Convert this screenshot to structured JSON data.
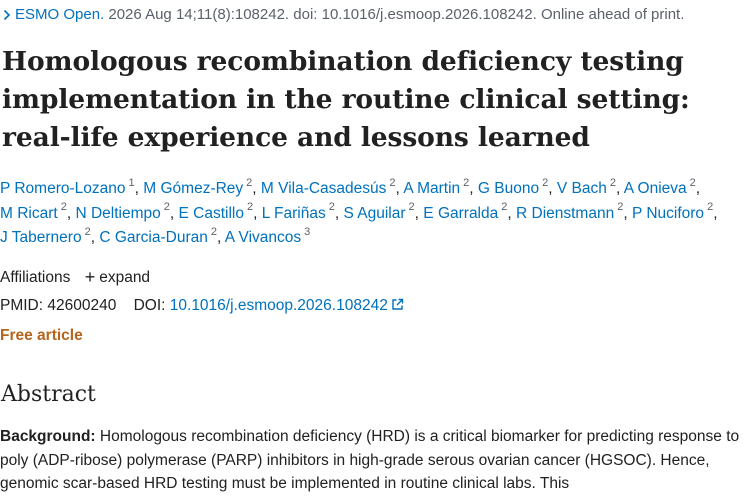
{
  "citation": {
    "journal": "ESMO Open.",
    "details": "2026 Aug 14;11(8):108242. doi: 10.1016/j.esmoop.2026.108242. Online ahead of print."
  },
  "title": "Homologous recombination deficiency testing implementation in the routine clinical setting: real-life experience and lessons learned",
  "authors": [
    {
      "name": "P Romero-Lozano",
      "aff": "1"
    },
    {
      "name": "M Gómez-Rey",
      "aff": "2"
    },
    {
      "name": "M Vila-Casadesús",
      "aff": "2"
    },
    {
      "name": "A Martin",
      "aff": "2"
    },
    {
      "name": "G Buono",
      "aff": "2"
    },
    {
      "name": "V Bach",
      "aff": "2"
    },
    {
      "name": "A Onieva",
      "aff": "2"
    },
    {
      "name": "M Ricart",
      "aff": "2"
    },
    {
      "name": "N Deltiempo",
      "aff": "2"
    },
    {
      "name": "E Castillo",
      "aff": "2"
    },
    {
      "name": "L Fariñas",
      "aff": "2"
    },
    {
      "name": "S Aguilar",
      "aff": "2"
    },
    {
      "name": "E Garralda",
      "aff": "2"
    },
    {
      "name": "R Dienstmann",
      "aff": "2"
    },
    {
      "name": "P Nuciforo",
      "aff": "2"
    },
    {
      "name": "J Tabernero",
      "aff": "2"
    },
    {
      "name": "C Garcia-Duran",
      "aff": "2"
    },
    {
      "name": "A Vivancos",
      "aff": "3"
    }
  ],
  "affiliations": {
    "label": "Affiliations",
    "expand_label": "expand"
  },
  "ids": {
    "pmid_label": "PMID:",
    "pmid": "42600240",
    "doi_label": "DOI:",
    "doi": "10.1016/j.esmoop.2026.108242"
  },
  "free_article": "Free article",
  "abstract": {
    "heading": "Abstract",
    "background_label": "Background:",
    "background_text": "Homologous recombination deficiency (HRD) is a critical biomarker for predicting response to poly (ADP-ribose) polymerase (PARP) inhibitors in high-grade serous ovarian cancer (HGSOC). Hence, genomic scar-based HRD testing must be implemented in routine clinical labs. This"
  },
  "colors": {
    "link": "#0071bc",
    "free_article": "#b5651d",
    "text": "#212121",
    "muted": "#5b616b"
  },
  "icons": {
    "journal_chevron": "chevron-right-icon",
    "expand": "plus-icon",
    "external_link": "external-link-icon"
  }
}
